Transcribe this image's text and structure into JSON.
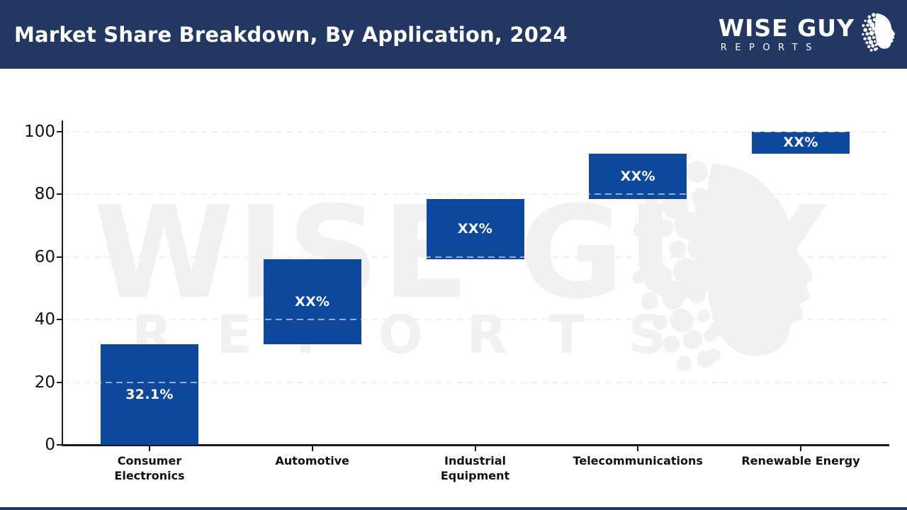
{
  "header": {
    "title": "Market Share Breakdown, By Application, 2024",
    "logo": {
      "wordmark": "WISE GUY",
      "subtitle": "REPORTS",
      "icon": "head-profile-dots-icon"
    }
  },
  "watermark": {
    "wordmark": "WISE GUY",
    "subtitle": "REPORTS",
    "face_icon": "head-profile-dots-icon"
  },
  "chart_data": {
    "type": "bar",
    "subtype": "waterfall",
    "title": "Market Share Breakdown, By Application, 2024",
    "xlabel": "",
    "ylabel": "",
    "categories": [
      "Consumer Electronics",
      "Automotive",
      "Industrial Equipment",
      "Telecommunications",
      "Renewable Energy"
    ],
    "category_label_lines": [
      [
        "Consumer",
        "Electronics"
      ],
      [
        "Automotive"
      ],
      [
        "Industrial",
        "Equipment"
      ],
      [
        "Telecommunications"
      ],
      [
        "Renewable Energy"
      ]
    ],
    "segments": [
      {
        "category": "Consumer Electronics",
        "start": 0,
        "end": 32.1,
        "label": "32.1%"
      },
      {
        "category": "Automotive",
        "start": 32.1,
        "end": 59.3,
        "label": "XX%"
      },
      {
        "category": "Industrial Equipment",
        "start": 59.3,
        "end": 78.6,
        "label": "XX%"
      },
      {
        "category": "Telecommunications",
        "start": 78.6,
        "end": 92.9,
        "label": "XX%"
      },
      {
        "category": "Renewable Energy",
        "start": 93.0,
        "end": 100.0,
        "label": "XX%"
      }
    ],
    "y_ticks": [
      0,
      20,
      40,
      60,
      80,
      100
    ],
    "ylim": [
      0,
      104
    ],
    "grid": "horizontal-dashed",
    "legend": "none"
  },
  "colors": {
    "header_bg": "#223862",
    "footer_bg": "#223862",
    "bar": "#0e489d",
    "bar_label": "#ffffff",
    "grid": "#e0e0e0",
    "axis": "#1a1a1a",
    "watermark": "#f1f1f1",
    "title_text": "#ffffff"
  }
}
